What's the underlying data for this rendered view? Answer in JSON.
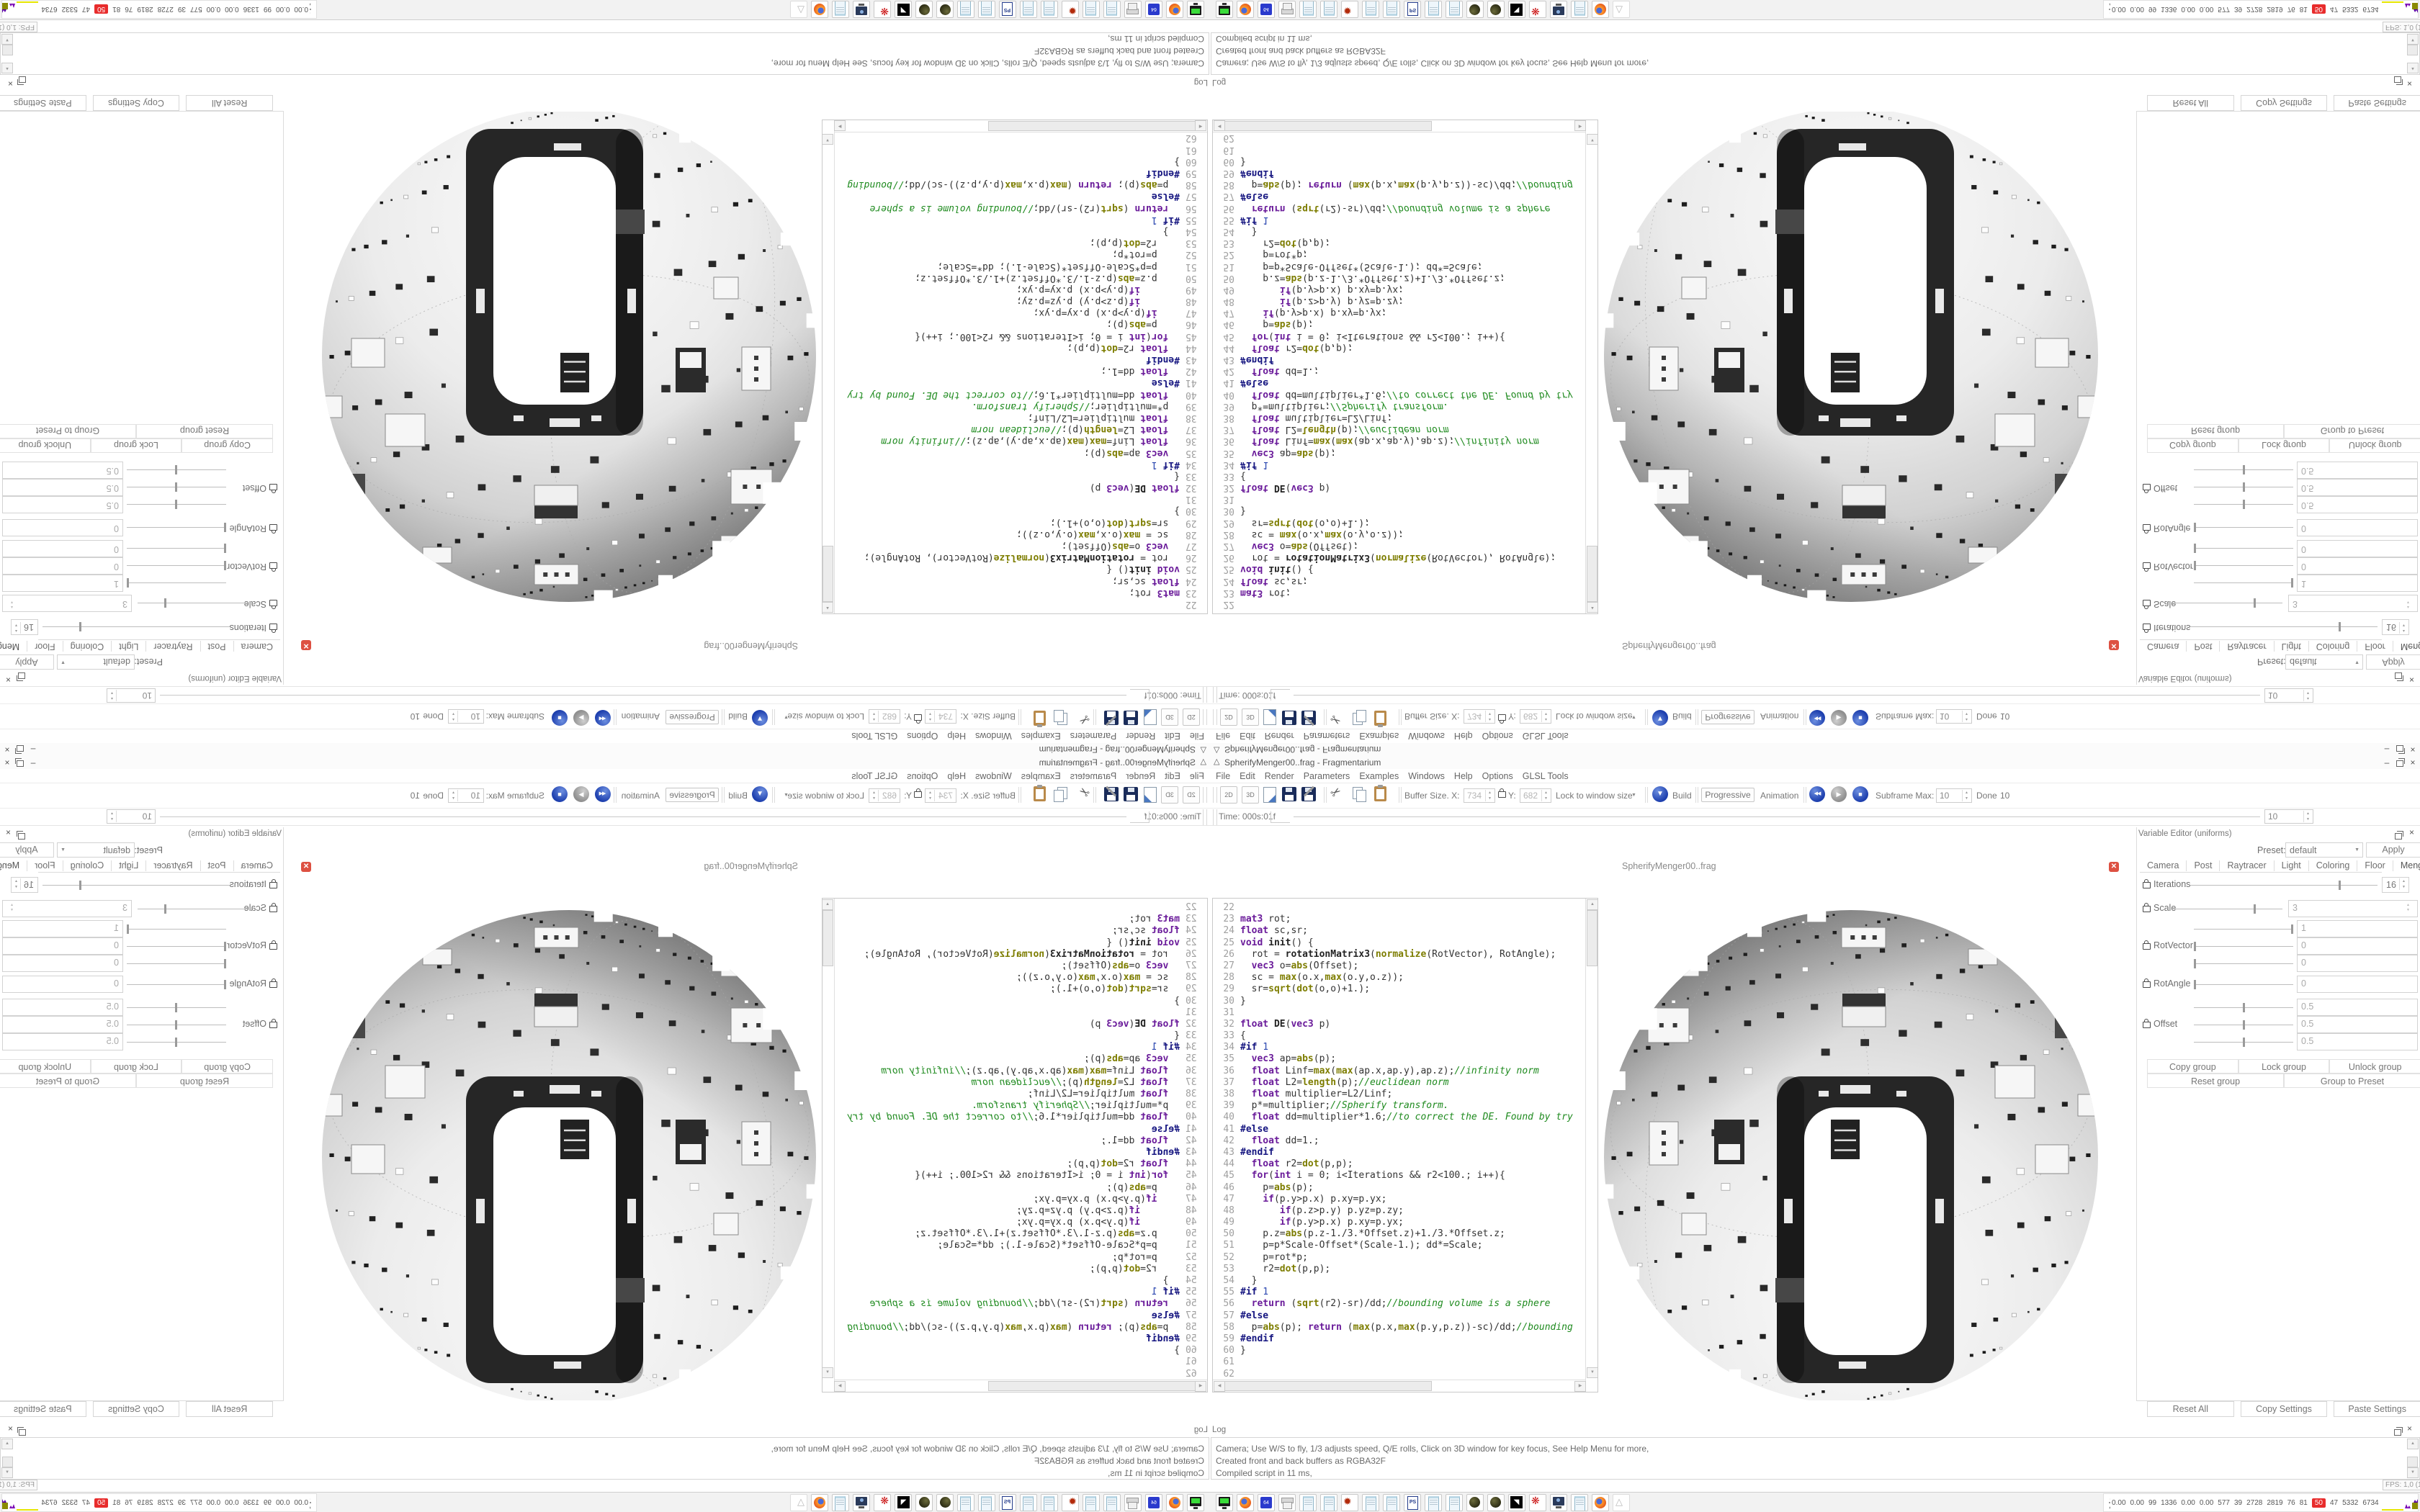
{
  "window": {
    "title": "SpherifyMenger00..frag - Fragmentarium",
    "minimize": "–",
    "close": "×"
  },
  "menu": {
    "items": [
      "File",
      "Edit",
      "Render",
      "Parameters",
      "Examples",
      "Windows",
      "Help",
      "Options",
      "GLSL Tools"
    ]
  },
  "toolbar": {
    "btn_2d": "2D",
    "btn_3d": "3D",
    "buffer_size_label": "Buffer Size. X:",
    "buffer_x": "734",
    "y_label": "Y:",
    "buffer_y": "682",
    "lock_combo": "Lock to window size",
    "build_label": "Build",
    "progressive_label": "Progressive",
    "animation_label": "Animation",
    "subframe_label": "Subframe Max:",
    "subframe_value": "10",
    "done_label": "Done",
    "done_value": "10"
  },
  "timebar": {
    "label": "Time: 000s:01f",
    "spin_value": "10"
  },
  "editor": {
    "tab": "SpherifyMenger00..frag",
    "first_line": 22,
    "lines": [
      [],
      [
        [
          "kw",
          "mat3"
        ],
        [
          "id",
          " rot;"
        ]
      ],
      [
        [
          "kw",
          "float"
        ],
        [
          "id",
          " sc,sr;"
        ]
      ],
      [
        [
          "kw",
          "void"
        ],
        [
          "id",
          " "
        ],
        [
          "fnb",
          "init"
        ],
        [
          "id",
          "() {"
        ]
      ],
      [
        [
          "id",
          "  rot = "
        ],
        [
          "fnb",
          "rotationMatrix3"
        ],
        [
          "id",
          "("
        ],
        [
          "fn",
          "normalize"
        ],
        [
          "id",
          "(RotVector), RotAngle);"
        ]
      ],
      [
        [
          "id",
          "  "
        ],
        [
          "kw",
          "vec3"
        ],
        [
          "id",
          " o="
        ],
        [
          "fn",
          "abs"
        ],
        [
          "id",
          "(Offset);"
        ]
      ],
      [
        [
          "id",
          "  sc = "
        ],
        [
          "fn",
          "max"
        ],
        [
          "id",
          "(o.x,"
        ],
        [
          "fn",
          "max"
        ],
        [
          "id",
          "(o.y,o.z));"
        ]
      ],
      [
        [
          "id",
          "  sr="
        ],
        [
          "fn",
          "sqrt"
        ],
        [
          "id",
          "("
        ],
        [
          "fn",
          "dot"
        ],
        [
          "id",
          "(o,o)+1.);"
        ]
      ],
      [
        [
          "id",
          "}"
        ]
      ],
      [],
      [
        [
          "kw",
          "float"
        ],
        [
          "id",
          " "
        ],
        [
          "fnb",
          "DE"
        ],
        [
          "id",
          "("
        ],
        [
          "kw",
          "vec3"
        ],
        [
          "id",
          " p)"
        ]
      ],
      [
        [
          "id",
          "{"
        ]
      ],
      [
        [
          "pp",
          "#if"
        ],
        [
          "num",
          " 1"
        ]
      ],
      [
        [
          "id",
          "  "
        ],
        [
          "kw",
          "vec3"
        ],
        [
          "id",
          " ap="
        ],
        [
          "fn",
          "abs"
        ],
        [
          "id",
          "(p);"
        ]
      ],
      [
        [
          "id",
          "  "
        ],
        [
          "kw",
          "float"
        ],
        [
          "id",
          " Linf="
        ],
        [
          "fn",
          "max"
        ],
        [
          "id",
          "("
        ],
        [
          "fn",
          "max"
        ],
        [
          "id",
          "(ap.x,ap.y),ap.z);"
        ],
        [
          "cm",
          "//infinity norm"
        ]
      ],
      [
        [
          "id",
          "  "
        ],
        [
          "kw",
          "float"
        ],
        [
          "id",
          " L2="
        ],
        [
          "fn",
          "length"
        ],
        [
          "id",
          "(p);"
        ],
        [
          "cm",
          "//euclidean norm"
        ]
      ],
      [
        [
          "id",
          "  "
        ],
        [
          "kw",
          "float"
        ],
        [
          "id",
          " multiplier=L2/Linf;"
        ]
      ],
      [
        [
          "id",
          "  p*=multiplier;"
        ],
        [
          "cm",
          "//Spherify transform."
        ]
      ],
      [
        [
          "id",
          "  "
        ],
        [
          "kw",
          "float"
        ],
        [
          "id",
          " dd=multiplier*1.6;"
        ],
        [
          "cm",
          "//to correct the DE. Found by try"
        ]
      ],
      [
        [
          "pp",
          "#else"
        ]
      ],
      [
        [
          "id",
          "  "
        ],
        [
          "kw",
          "float"
        ],
        [
          "id",
          " dd=1.;"
        ]
      ],
      [
        [
          "pp",
          "#endif"
        ]
      ],
      [
        [
          "id",
          "  "
        ],
        [
          "kw",
          "float"
        ],
        [
          "id",
          " r2="
        ],
        [
          "fn",
          "dot"
        ],
        [
          "id",
          "(p,p);"
        ]
      ],
      [
        [
          "id",
          "  "
        ],
        [
          "kw",
          "for"
        ],
        [
          "id",
          "("
        ],
        [
          "kw",
          "int"
        ],
        [
          "id",
          " i = 0; i<Iterations && r2<100.; i++){"
        ]
      ],
      [
        [
          "id",
          "    p="
        ],
        [
          "fn",
          "abs"
        ],
        [
          "id",
          "(p);"
        ]
      ],
      [
        [
          "id",
          "    "
        ],
        [
          "kw",
          "if"
        ],
        [
          "id",
          "(p.y>p.x) p.xy=p.yx;"
        ]
      ],
      [
        [
          "id",
          "       "
        ],
        [
          "kw",
          "if"
        ],
        [
          "id",
          "(p.z>p.y) p.yz=p.zy;"
        ]
      ],
      [
        [
          "id",
          "       "
        ],
        [
          "kw",
          "if"
        ],
        [
          "id",
          "(p.y>p.x) p.xy=p.yx;"
        ]
      ],
      [
        [
          "id",
          "    p.z="
        ],
        [
          "fn",
          "abs"
        ],
        [
          "id",
          "(p.z-1./3.*Offset.z)+1./3.*Offset.z;"
        ]
      ],
      [
        [
          "id",
          "    p=p*Scale-Offset*(Scale-1.); dd*=Scale;"
        ]
      ],
      [
        [
          "id",
          "    p=rot*p;"
        ]
      ],
      [
        [
          "id",
          "    r2="
        ],
        [
          "fn",
          "dot"
        ],
        [
          "id",
          "(p,p);"
        ]
      ],
      [
        [
          "id",
          "  }"
        ]
      ],
      [
        [
          "pp",
          "#if"
        ],
        [
          "num",
          " 1"
        ]
      ],
      [
        [
          "id",
          "  "
        ],
        [
          "kw",
          "return"
        ],
        [
          "id",
          " ("
        ],
        [
          "fn",
          "sqrt"
        ],
        [
          "id",
          "(r2)-sr)/dd;"
        ],
        [
          "cm",
          "//bounding volume is a sphere"
        ]
      ],
      [
        [
          "pp",
          "#else"
        ]
      ],
      [
        [
          "id",
          "  p="
        ],
        [
          "fn",
          "abs"
        ],
        [
          "id",
          "(p); "
        ],
        [
          "kw",
          "return"
        ],
        [
          "id",
          " ("
        ],
        [
          "fn",
          "max"
        ],
        [
          "id",
          "(p.x,"
        ],
        [
          "fn",
          "max"
        ],
        [
          "id",
          "(p.y,p.z))-sc)/dd;"
        ],
        [
          "cm",
          "//bounding"
        ]
      ],
      [
        [
          "pp",
          "#endif"
        ]
      ],
      [
        [
          "id",
          "}"
        ]
      ],
      [],
      []
    ]
  },
  "render_view": {
    "description": "Spherified Menger sponge fractal render"
  },
  "variable_editor": {
    "title": "Variable Editor (uniforms)",
    "preset_label": "Preset:",
    "preset_value": "default",
    "apply_label": "Apply",
    "tabs": [
      "Camera",
      "Post",
      "Raytracer",
      "Light",
      "Coloring",
      "Floor",
      "Menger"
    ],
    "selected_tab": "Menger",
    "params": [
      {
        "label": "Iterations",
        "type": "spin",
        "value": "16",
        "slider": 0.8
      },
      {
        "label": "Scale",
        "type": "wide",
        "value": "3",
        "slider": 0.75
      },
      {
        "label": "RotVector",
        "type": "vec3",
        "values": [
          "1",
          "0",
          "0"
        ],
        "sliders": [
          1,
          0,
          0
        ]
      },
      {
        "label": "RotAngle",
        "type": "single",
        "value": "0",
        "slider": 0
      },
      {
        "label": "Offset",
        "type": "vec3",
        "values": [
          "0.5",
          "0.5",
          "0.5"
        ],
        "sliders": [
          0.5,
          0.5,
          0.5
        ]
      }
    ],
    "group_buttons_row1": [
      "Copy group",
      "Lock group",
      "Unlock group"
    ],
    "group_buttons_row2": [
      "Reset group",
      "Group to Preset"
    ],
    "bottom_buttons": [
      "Reset All",
      "Copy Settings",
      "Paste Settings"
    ]
  },
  "log": {
    "title": "Log",
    "lines": [
      "Camera; Use W/S to fly, 1/3 adjusts speed, Q/E rolls, Click on 3D window for key focus, See Help Menu for more,",
      "Created front and back buffers as RGBA32F",
      "Compiled script in 11 ms,"
    ]
  },
  "status": {
    "fps": "FPS: 1,0 (1s)"
  },
  "taskbar": {
    "tray_values": [
      "0.00",
      "0.00",
      "99",
      "1336",
      "0.00",
      "0.00",
      "577",
      "39",
      "2728",
      "2819",
      "76",
      "81",
      "50",
      "47",
      "5332",
      "6734"
    ],
    "highlight_value": "50",
    "icons": [
      "monitor-green",
      "firefox",
      "floppy-64",
      "printer",
      "notepad",
      "notepad",
      "red-splat",
      "notepad",
      "notepad",
      "ps-doc",
      "notepad",
      "notepad",
      "globe",
      "globe",
      "bw-arrow",
      "red-gear",
      "monitor-user",
      "notepad",
      "firefox",
      "fragmentarium-prism"
    ]
  }
}
